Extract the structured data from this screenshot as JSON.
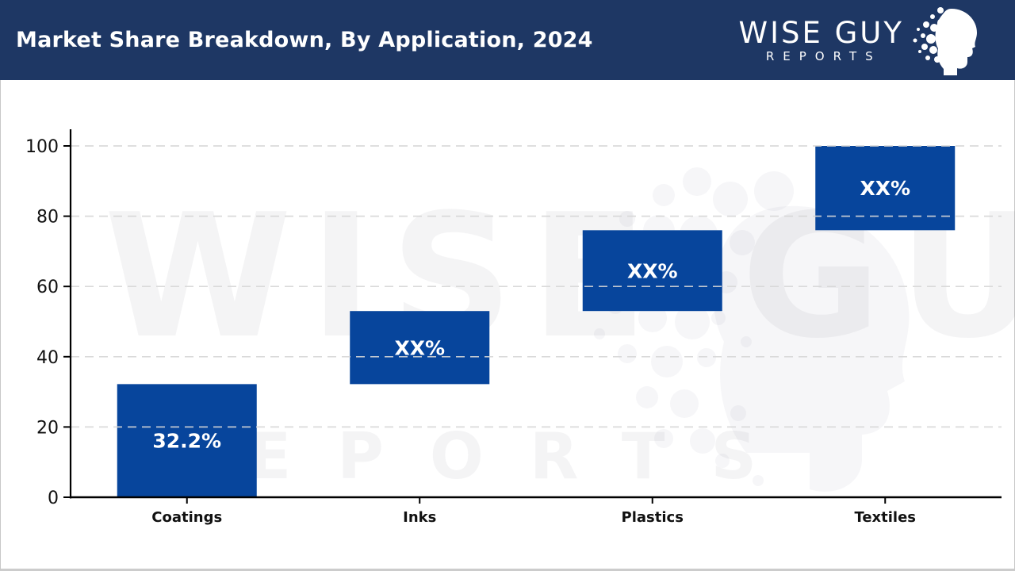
{
  "header": {
    "title": "Market Share Breakdown, By Application, 2024",
    "logo": {
      "line1": "WISE GUY",
      "line2": "REPORTS"
    }
  },
  "watermark": {
    "line1": "WISE GUY",
    "line2": "REPORTS"
  },
  "colors": {
    "header_navy": "#1e3764",
    "bar_blue": "#07459c",
    "grid_gray": "#d7d7d7",
    "axis_black": "#000000",
    "bar_label_white": "#ffffff",
    "tick_text": "#111111"
  },
  "chart_data": {
    "type": "bar",
    "subtype": "waterfall",
    "title": "Market Share Breakdown, By Application, 2024",
    "categories": [
      "Coatings",
      "Inks",
      "Plastics",
      "Textiles"
    ],
    "bars": [
      {
        "category": "Coatings",
        "start": 0,
        "end": 32.2,
        "label": "32.2%"
      },
      {
        "category": "Inks",
        "start": 32.2,
        "end": 53,
        "label": "XX%"
      },
      {
        "category": "Plastics",
        "start": 53,
        "end": 76,
        "label": "XX%"
      },
      {
        "category": "Textiles",
        "start": 76,
        "end": 100,
        "label": "XX%"
      }
    ],
    "yticks": [
      0,
      20,
      40,
      60,
      80,
      100
    ],
    "ylim": [
      0,
      105
    ],
    "xlabel": "",
    "ylabel": "",
    "grid": "horizontal-dashed",
    "legend": "none"
  }
}
